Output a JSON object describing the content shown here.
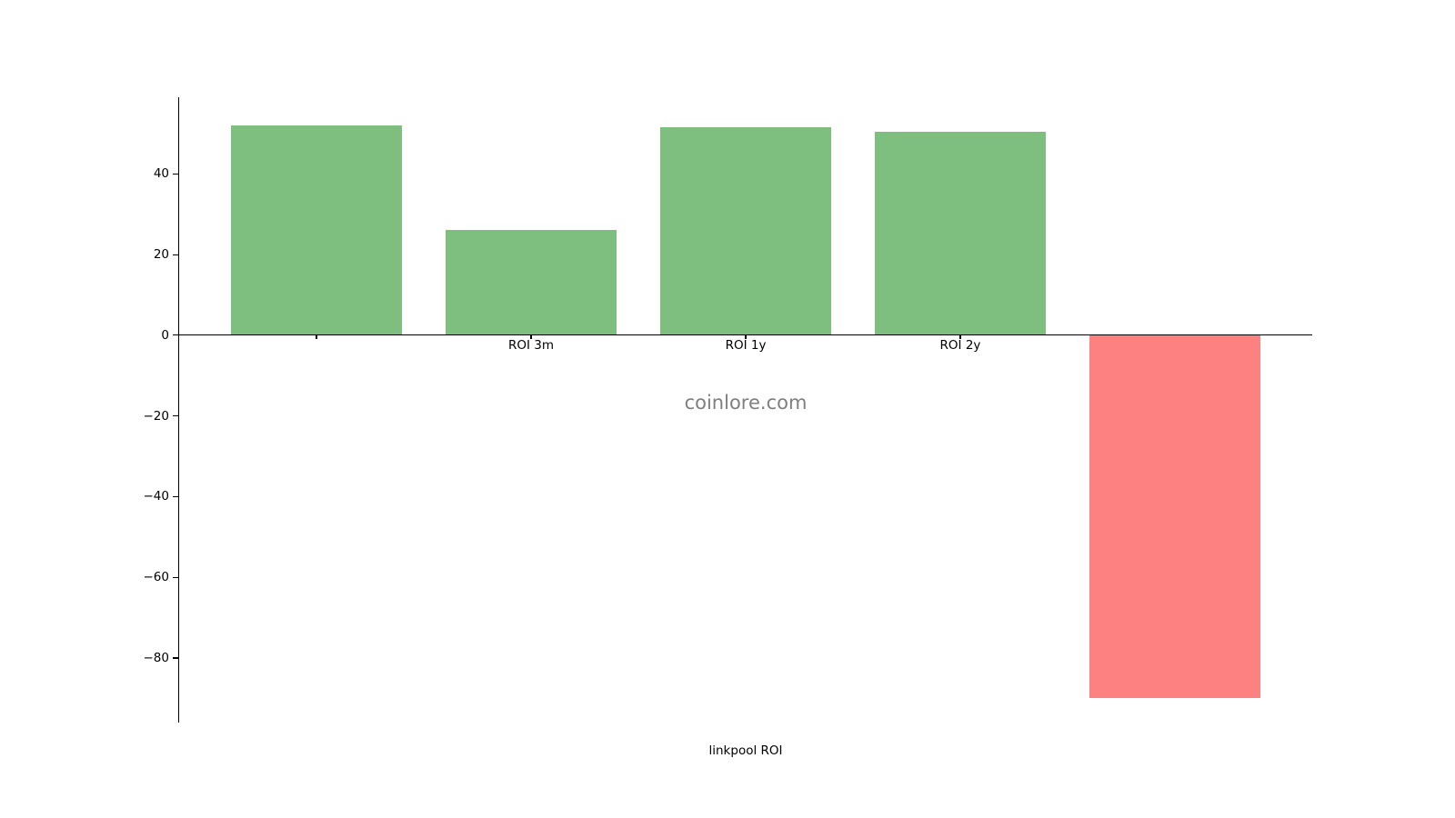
{
  "page": {
    "background": "#ffffff"
  },
  "watermark": {
    "text": "coinlore.com",
    "color": "#7f7f7f"
  },
  "chart_data": {
    "type": "bar",
    "title": "",
    "xlabel": "linkpool ROI",
    "ylabel": "",
    "categories": [
      "",
      "ROI 3m",
      "ROI 1y",
      "ROI 2y",
      ""
    ],
    "values": [
      52,
      26,
      51.5,
      50.5,
      -90
    ],
    "yticks": [
      40,
      20,
      0,
      -20,
      -40,
      -60,
      -80
    ],
    "ylim": [
      -96,
      59
    ],
    "bar_width_frac": 0.8,
    "x_margin_frac": 0.05,
    "grid": false,
    "legend": false,
    "colors": {
      "positive_bar": "#7ebe7e",
      "negative_bar": "#fe8181",
      "axis": "#000000",
      "tick_label": "#000000"
    }
  }
}
